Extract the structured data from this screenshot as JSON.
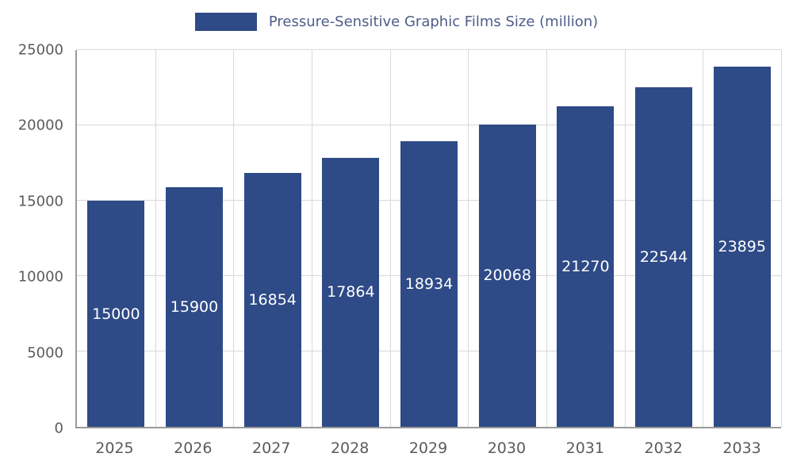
{
  "chart_data": {
    "type": "bar",
    "title": "Pressure-Sensitive Graphic Films Size (million)",
    "categories": [
      "2025",
      "2026",
      "2027",
      "2028",
      "2029",
      "2030",
      "2031",
      "2032",
      "2033"
    ],
    "values": [
      15000,
      15900,
      16854,
      17864,
      18934,
      20068,
      21270,
      22544,
      23895
    ],
    "xlabel": "",
    "ylabel": "",
    "ylim": [
      0,
      25000
    ],
    "yticks": [
      0,
      5000,
      10000,
      15000,
      20000,
      25000
    ],
    "grid": true,
    "legend_position": "top",
    "bar_color": "#2e4a87",
    "value_label_color": "#ffffff"
  }
}
